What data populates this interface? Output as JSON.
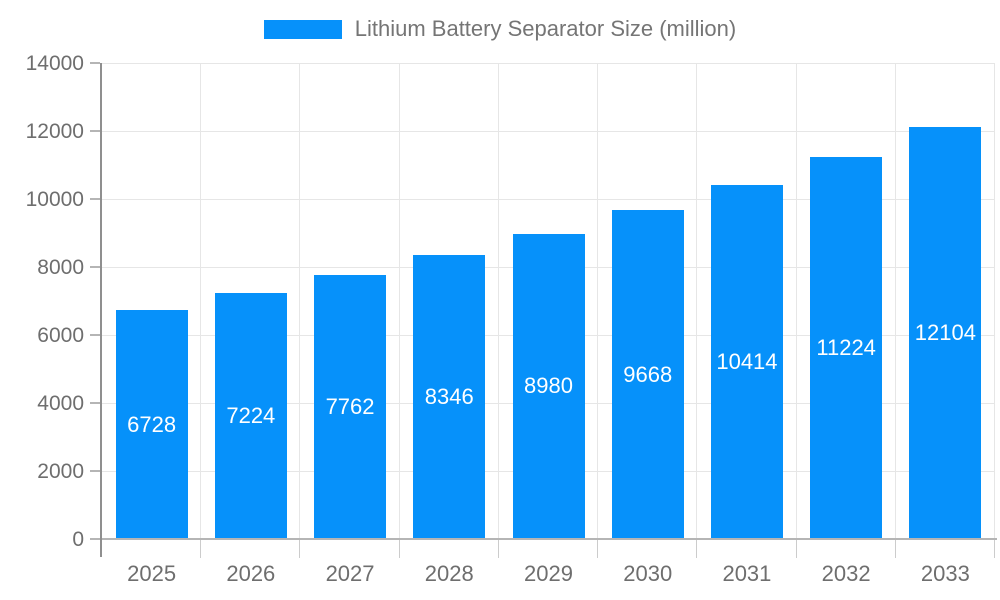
{
  "legend": {
    "label": "Lithium Battery Separator Size (million)"
  },
  "chart_data": {
    "type": "bar",
    "title": "Lithium Battery Separator Size (million)",
    "categories": [
      "2025",
      "2026",
      "2027",
      "2028",
      "2029",
      "2030",
      "2031",
      "2032",
      "2033"
    ],
    "values": [
      6728,
      7224,
      7762,
      8346,
      8980,
      9668,
      10414,
      11224,
      12104
    ],
    "series_name": "Lithium Battery Separator Size (million)",
    "xlabel": "",
    "ylabel": "",
    "ylim": [
      0,
      14000
    ],
    "yticks": [
      0,
      2000,
      4000,
      6000,
      8000,
      10000,
      12000,
      14000
    ],
    "grid": true,
    "legend_position": "top",
    "value_labels": "inside-center"
  },
  "colors": {
    "bar": "#0691fa",
    "value_label": "#ffffff",
    "axis_text": "#6e6e6e",
    "legend_text": "#757575",
    "gridline": "#e6e6e6",
    "y_axis_line": "#8f8f8f",
    "x_axis_line": "#b5b5b5",
    "background": "#ffffff"
  }
}
